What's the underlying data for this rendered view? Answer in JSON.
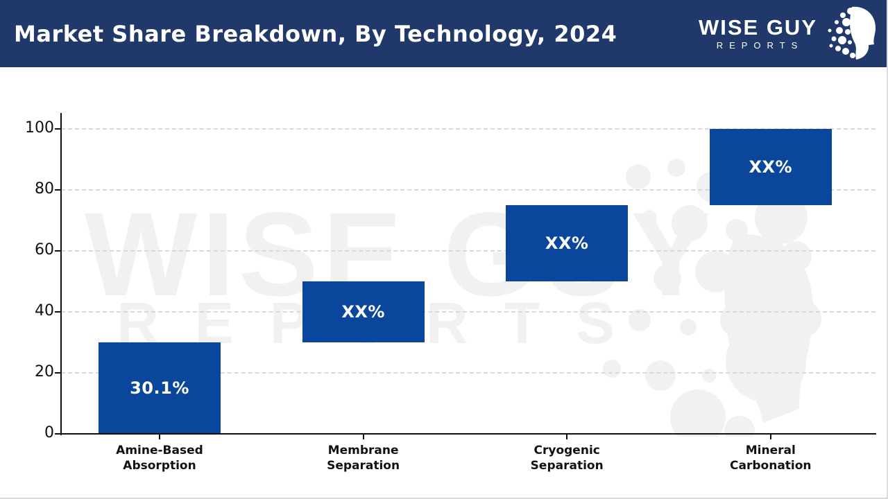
{
  "header": {
    "title": "Market Share Breakdown, By Technology, 2024",
    "logo": {
      "line1": "WISE GUY",
      "line2": "REPORTS"
    }
  },
  "watermark": {
    "line1": "WISE GUY",
    "line2": "REPORTS"
  },
  "chart_data": {
    "type": "bar",
    "subtype": "waterfall",
    "title": "Market Share Breakdown, By Technology, 2024",
    "xlabel": "",
    "ylabel": "",
    "categories": [
      "Amine-Based\nAbsorption",
      "Membrane\nSeparation",
      "Cryogenic\nSeparation",
      "Mineral\nCarbonation"
    ],
    "segments": [
      {
        "category": "Amine-Based Absorption",
        "start": 0,
        "end": 30.1,
        "label": "30.1%"
      },
      {
        "category": "Membrane Separation",
        "start": 30,
        "end": 50,
        "label": "XX%"
      },
      {
        "category": "Cryogenic Separation",
        "start": 50,
        "end": 75,
        "label": "XX%"
      },
      {
        "category": "Mineral Carbonation",
        "start": 75,
        "end": 100,
        "label": "XX%"
      }
    ],
    "yticks": [
      0,
      20,
      40,
      60,
      80,
      100
    ],
    "ylim": [
      0,
      105
    ],
    "grid": "horizontal-dashed",
    "legend": "none",
    "bar_color": "#0a469c",
    "value_label_color": "#ffffff"
  },
  "colors": {
    "header_bg": "#20396a",
    "bar": "#0a469c",
    "gridline": "#d9d9d9",
    "axis": "#111111",
    "watermark": "#f1f1f4"
  }
}
